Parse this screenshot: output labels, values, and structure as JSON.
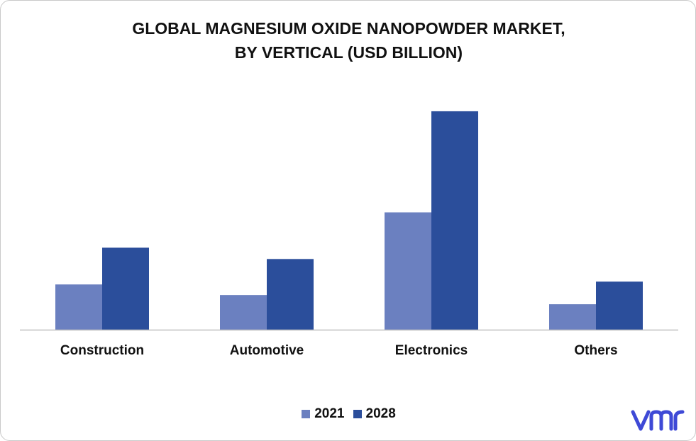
{
  "chart_data": {
    "type": "bar",
    "title_lines": [
      "GLOBAL MAGNESIUM OXIDE NANOPOWDER MARKET,",
      "BY VERTICAL (USD BILLION)"
    ],
    "categories": [
      "Construction",
      "Automotive",
      "Electronics",
      "Others"
    ],
    "series": [
      {
        "name": "2021",
        "values": [
          64,
          49,
          166,
          36
        ],
        "color": "#6b80c0"
      },
      {
        "name": "2028",
        "values": [
          116,
          100,
          309,
          68
        ],
        "color": "#2b4e9b"
      }
    ],
    "ylim": [
      0,
      330
    ],
    "y_axis_visible": false,
    "grid": false,
    "legend_position": "bottom-center"
  },
  "brand": {
    "logo_name": "vmr-logo",
    "logo_color": "#3e49d6"
  }
}
